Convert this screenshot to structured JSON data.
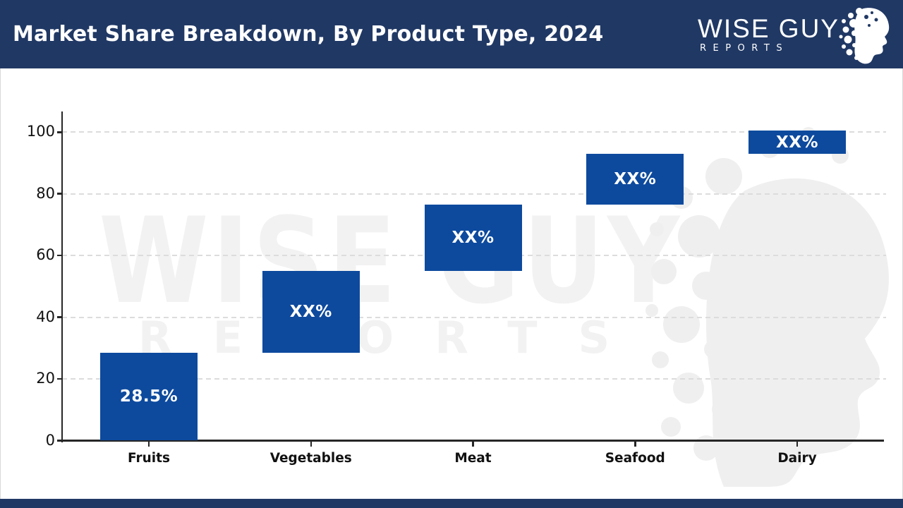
{
  "header": {
    "title": "Market Share Breakdown, By Product Type, 2024",
    "logo": {
      "line1": "WISE GUY",
      "line2": "REPORTS"
    }
  },
  "watermark": {
    "line1": "WISE GUY",
    "line2": "REPORTS"
  },
  "colors": {
    "header_bg": "#203864",
    "footer_bg": "#203864",
    "bar": "#0d4a9e",
    "bar_label": "#ffffff",
    "gridline": "#dcdcdc",
    "axis": "#262626",
    "watermark": "#f2f2f2"
  },
  "chart_data": {
    "type": "bar",
    "subtype": "waterfall",
    "title": "Market Share Breakdown, By Product Type, 2024",
    "xlabel": "",
    "ylabel": "",
    "categories": [
      "Fruits",
      "Vegetables",
      "Meat",
      "Seafood",
      "Dairy"
    ],
    "segments": [
      {
        "category": "Fruits",
        "start": 0,
        "end": 28.5,
        "label": "28.5%"
      },
      {
        "category": "Vegetables",
        "start": 28.5,
        "end": 55,
        "label": "XX%"
      },
      {
        "category": "Meat",
        "start": 55,
        "end": 76.5,
        "label": "XX%"
      },
      {
        "category": "Seafood",
        "start": 76.5,
        "end": 93,
        "label": "XX%"
      },
      {
        "category": "Dairy",
        "start": 93,
        "end": 100.5,
        "label": "XX%"
      }
    ],
    "ylim": [
      0,
      105
    ],
    "yticks": [
      0,
      20,
      40,
      60,
      80,
      100
    ],
    "grid": "horizontal dashed",
    "legend": "none"
  }
}
